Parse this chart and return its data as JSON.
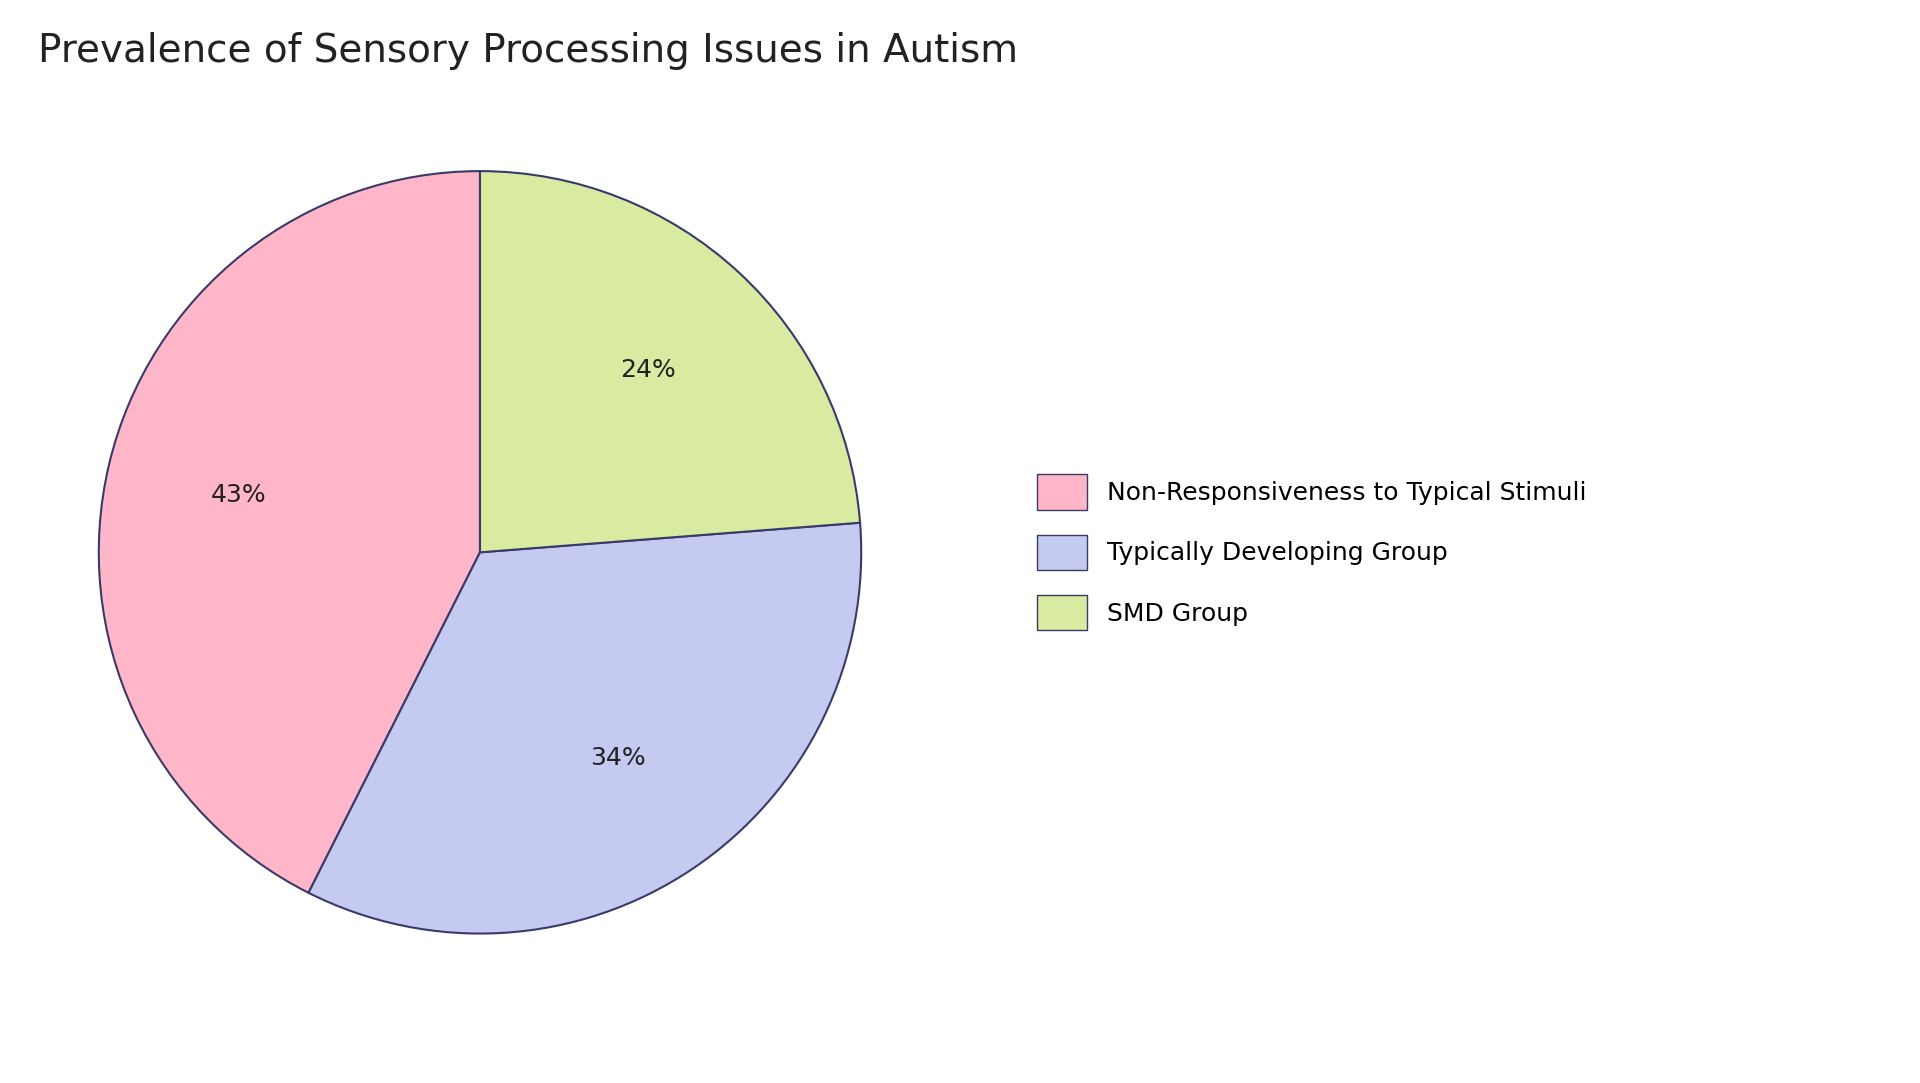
{
  "title": "Prevalence of Sensory Processing Issues in Autism",
  "labels": [
    "Non-Responsiveness to Typical Stimuli",
    "Typically Developing Group",
    "SMD Group"
  ],
  "values": [
    43,
    34,
    24
  ],
  "colors": [
    "#FFB6C8",
    "#C5CAF0",
    "#D8EBA0"
  ],
  "edge_color": "#3a3a6a",
  "edge_width": 1.5,
  "startangle": 90,
  "title_fontsize": 28,
  "autopct_fontsize": 18,
  "legend_fontsize": 18,
  "background_color": "#ffffff",
  "text_color": "#222222",
  "pctdistance": 0.65
}
